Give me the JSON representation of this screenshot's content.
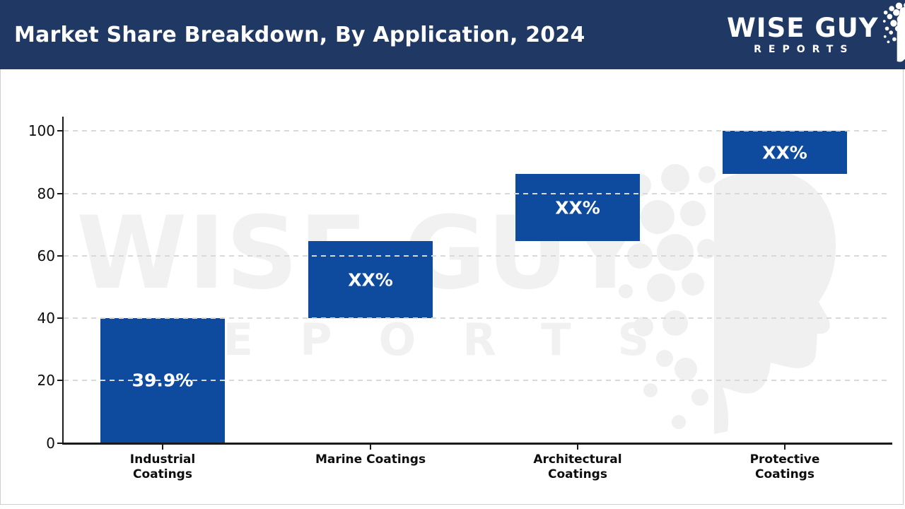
{
  "header": {
    "title": "Market Share Breakdown, By Application, 2024",
    "bg_color": "#1f3864",
    "logo": {
      "name": "WISE GUY",
      "sub": "REPORTS"
    }
  },
  "watermark": {
    "line1": "WISE GUY",
    "line2": "REPORTS"
  },
  "chart_data": {
    "type": "bar",
    "subtype": "waterfall",
    "title": "Market Share Breakdown, By Application, 2024",
    "categories": [
      "Industrial\nCoatings",
      "Marine Coatings",
      "Architectural\nCoatings",
      "Protective\nCoatings"
    ],
    "segments": [
      {
        "category": "Industrial Coatings",
        "start": 0,
        "end": 39.9,
        "label": "39.9%"
      },
      {
        "category": "Marine Coatings",
        "start": 39.9,
        "end": 64.7,
        "label": "XX%"
      },
      {
        "category": "Architectural Coatings",
        "start": 64.7,
        "end": 86.2,
        "label": "XX%"
      },
      {
        "category": "Protective Coatings",
        "start": 86.2,
        "end": 100,
        "label": "XX%"
      }
    ],
    "yticks": [
      0,
      20,
      40,
      60,
      80,
      100
    ],
    "ylim": [
      0,
      104.5
    ],
    "bar_color": "#0e4a9e",
    "grid": "horizontal-dashed",
    "legend": "none"
  }
}
